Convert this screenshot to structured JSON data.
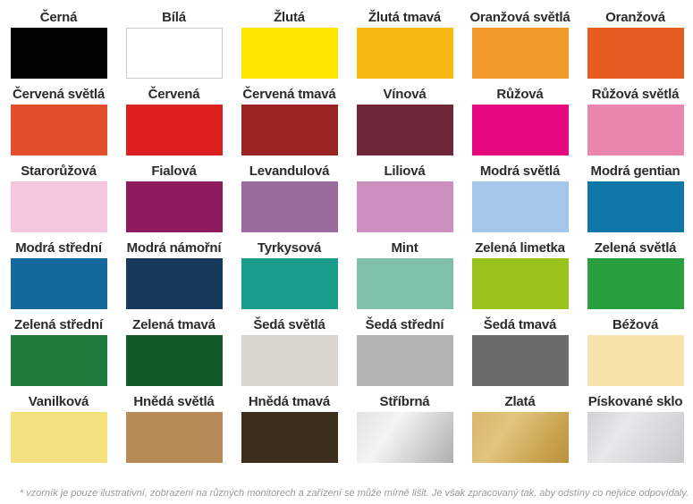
{
  "page": {
    "background": "#ffffff",
    "label_color": "#2b2b2b",
    "footnote": "* vzorník je pouze ilustrativní, zobrazení na různých monitorech a zařízení se může mírně lišit. Je však zpracovaný tak, aby odstíny co nejvice odpovídaly."
  },
  "palette": {
    "columns": 6,
    "rows": 6,
    "swatches": [
      {
        "label": "Černá",
        "color": "#010101"
      },
      {
        "label": "Bílá",
        "color": "#ffffff",
        "border": "#c9c9c9"
      },
      {
        "label": "Žlutá",
        "color": "#ffe500"
      },
      {
        "label": "Žlutá tmavá",
        "color": "#f9b913"
      },
      {
        "label": "Oranžová světlá",
        "color": "#f0992b"
      },
      {
        "label": "Oranžová",
        "color": "#e55d20"
      },
      {
        "label": "Červená světlá",
        "color": "#e34f2b"
      },
      {
        "label": "Červená",
        "color": "#dc2020"
      },
      {
        "label": "Červená tmavá",
        "color": "#992422"
      },
      {
        "label": "Vínová",
        "color": "#702639"
      },
      {
        "label": "Růžová",
        "color": "#e5087e"
      },
      {
        "label": "Růžová světlá",
        "color": "#ea86ae"
      },
      {
        "label": "Starorůžová",
        "color": "#f5c7de"
      },
      {
        "label": "Fialová",
        "color": "#8e1b5b"
      },
      {
        "label": "Levandulová",
        "color": "#9c6b9e"
      },
      {
        "label": "Liliová",
        "color": "#cc8fbe"
      },
      {
        "label": "Modrá světlá",
        "color": "#a4c7e9"
      },
      {
        "label": "Modrá gentian",
        "color": "#0f76a8"
      },
      {
        "label": "Modrá střední",
        "color": "#15689e"
      },
      {
        "label": "Modrá námořní",
        "color": "#16395c"
      },
      {
        "label": "Tyrkysová",
        "color": "#1a9c8a"
      },
      {
        "label": "Mint",
        "color": "#7fc0a8"
      },
      {
        "label": "Zelená limetka",
        "color": "#9ac31d"
      },
      {
        "label": "Zelená světlá",
        "color": "#27a03d"
      },
      {
        "label": "Zelená střední",
        "color": "#1e7b3c"
      },
      {
        "label": "Zelená tmavá",
        "color": "#145b2c"
      },
      {
        "label": "Šedá světlá",
        "color": "#d7d5cd"
      },
      {
        "label": "Šedá střední",
        "color": "#b3b3b1"
      },
      {
        "label": "Šedá tmavá",
        "color": "#6c6c6c"
      },
      {
        "label": "Béžová",
        "color": "#f6e3ab"
      },
      {
        "label": "Vanilková",
        "color": "#f3e17d"
      },
      {
        "label": "Hnědá světlá",
        "color": "#b78b57"
      },
      {
        "label": "Hnědá tmavá",
        "color": "#3c2e1d"
      },
      {
        "label": "Stříbrná",
        "gradient": [
          "#e2e2e2",
          "#f4f4f4",
          "#c9c9c9",
          "#aeaeae"
        ]
      },
      {
        "label": "Zlatá",
        "gradient": [
          "#d9b76a",
          "#e2c47e",
          "#c9a24e",
          "#bb923c"
        ]
      },
      {
        "label": "Pískované sklo",
        "gradient": [
          "#cfd2d3",
          "#e6e8e9",
          "#d2d5d6",
          "#c6c9ca"
        ]
      }
    ]
  }
}
